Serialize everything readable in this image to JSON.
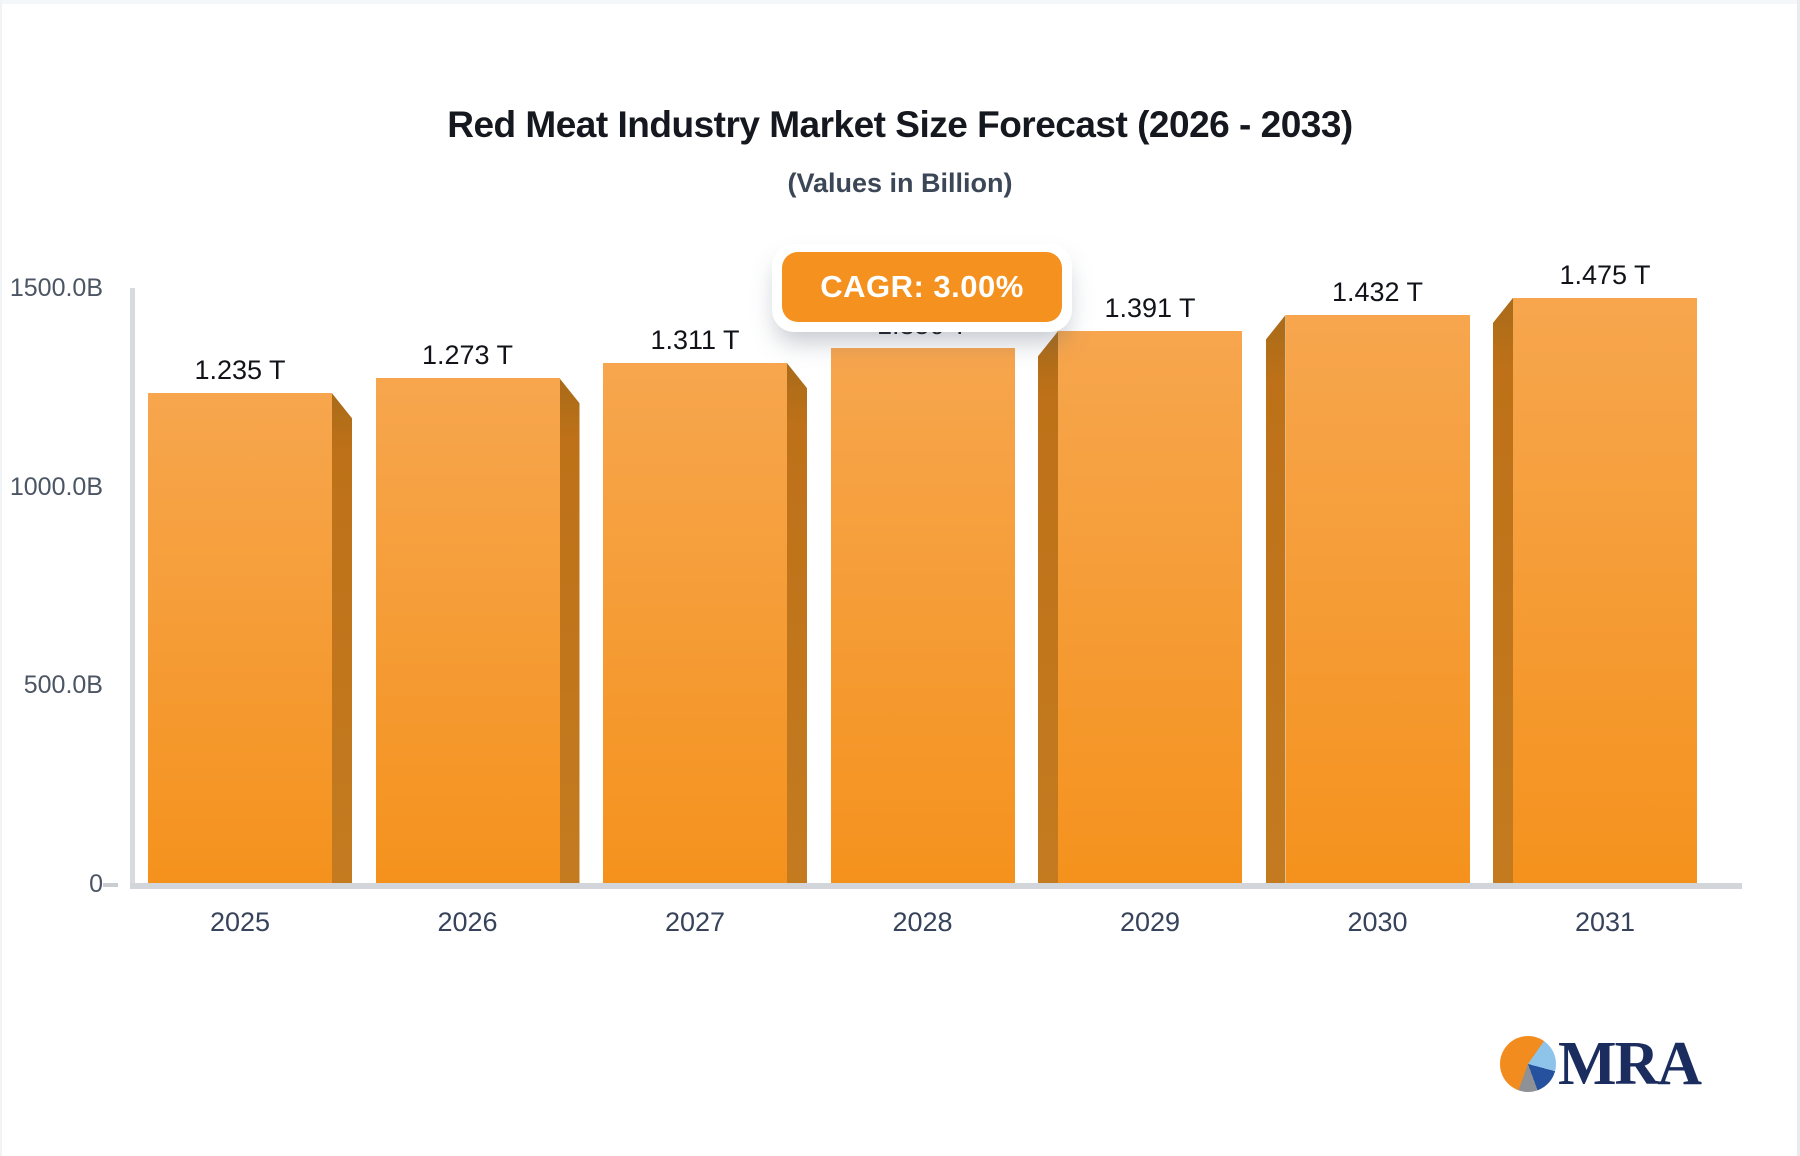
{
  "title": "Red Meat Industry Market Size Forecast (2026 - 2033)",
  "subtitle": "(Values in Billion)",
  "badge": {
    "label": "CAGR: 3.00%"
  },
  "logo": {
    "text": "MRA"
  },
  "colors": {
    "bar_face_top": "#F7A64E",
    "bar_face_bottom": "#F5921D",
    "bar_side": "#BE7118",
    "badge_bg": "#F5911E",
    "axis_line": "#D3D7DC",
    "title_text": "#15181E",
    "logo_navy": "#1B2C5F"
  },
  "chart_data": {
    "type": "bar",
    "categories": [
      "2025",
      "2026",
      "2027",
      "2028",
      "2029",
      "2030",
      "2031"
    ],
    "values": [
      1235,
      1273,
      1311,
      1350,
      1391,
      1432,
      1475
    ],
    "unit": "Billion",
    "bar_labels": [
      "1.235 T",
      "1.273 T",
      "1.311 T",
      "1.350 T",
      "1.391 T",
      "1.432 T",
      "1.475 T"
    ],
    "title": "Red Meat Industry Market Size Forecast (2026 - 2033)",
    "subtitle": "(Values in Billion)",
    "xlabel": "",
    "ylabel": "",
    "ylim": [
      0,
      1500
    ],
    "yticks": [
      {
        "value": 0,
        "label": "0"
      },
      {
        "value": 500,
        "label": "500.0B"
      },
      {
        "value": 1000,
        "label": "1000.0B"
      },
      {
        "value": 1500,
        "label": "1500.0B"
      }
    ],
    "annotation": "CAGR: 3.00%",
    "grid": false,
    "legend": false,
    "style": "3d-extruded-bars"
  }
}
